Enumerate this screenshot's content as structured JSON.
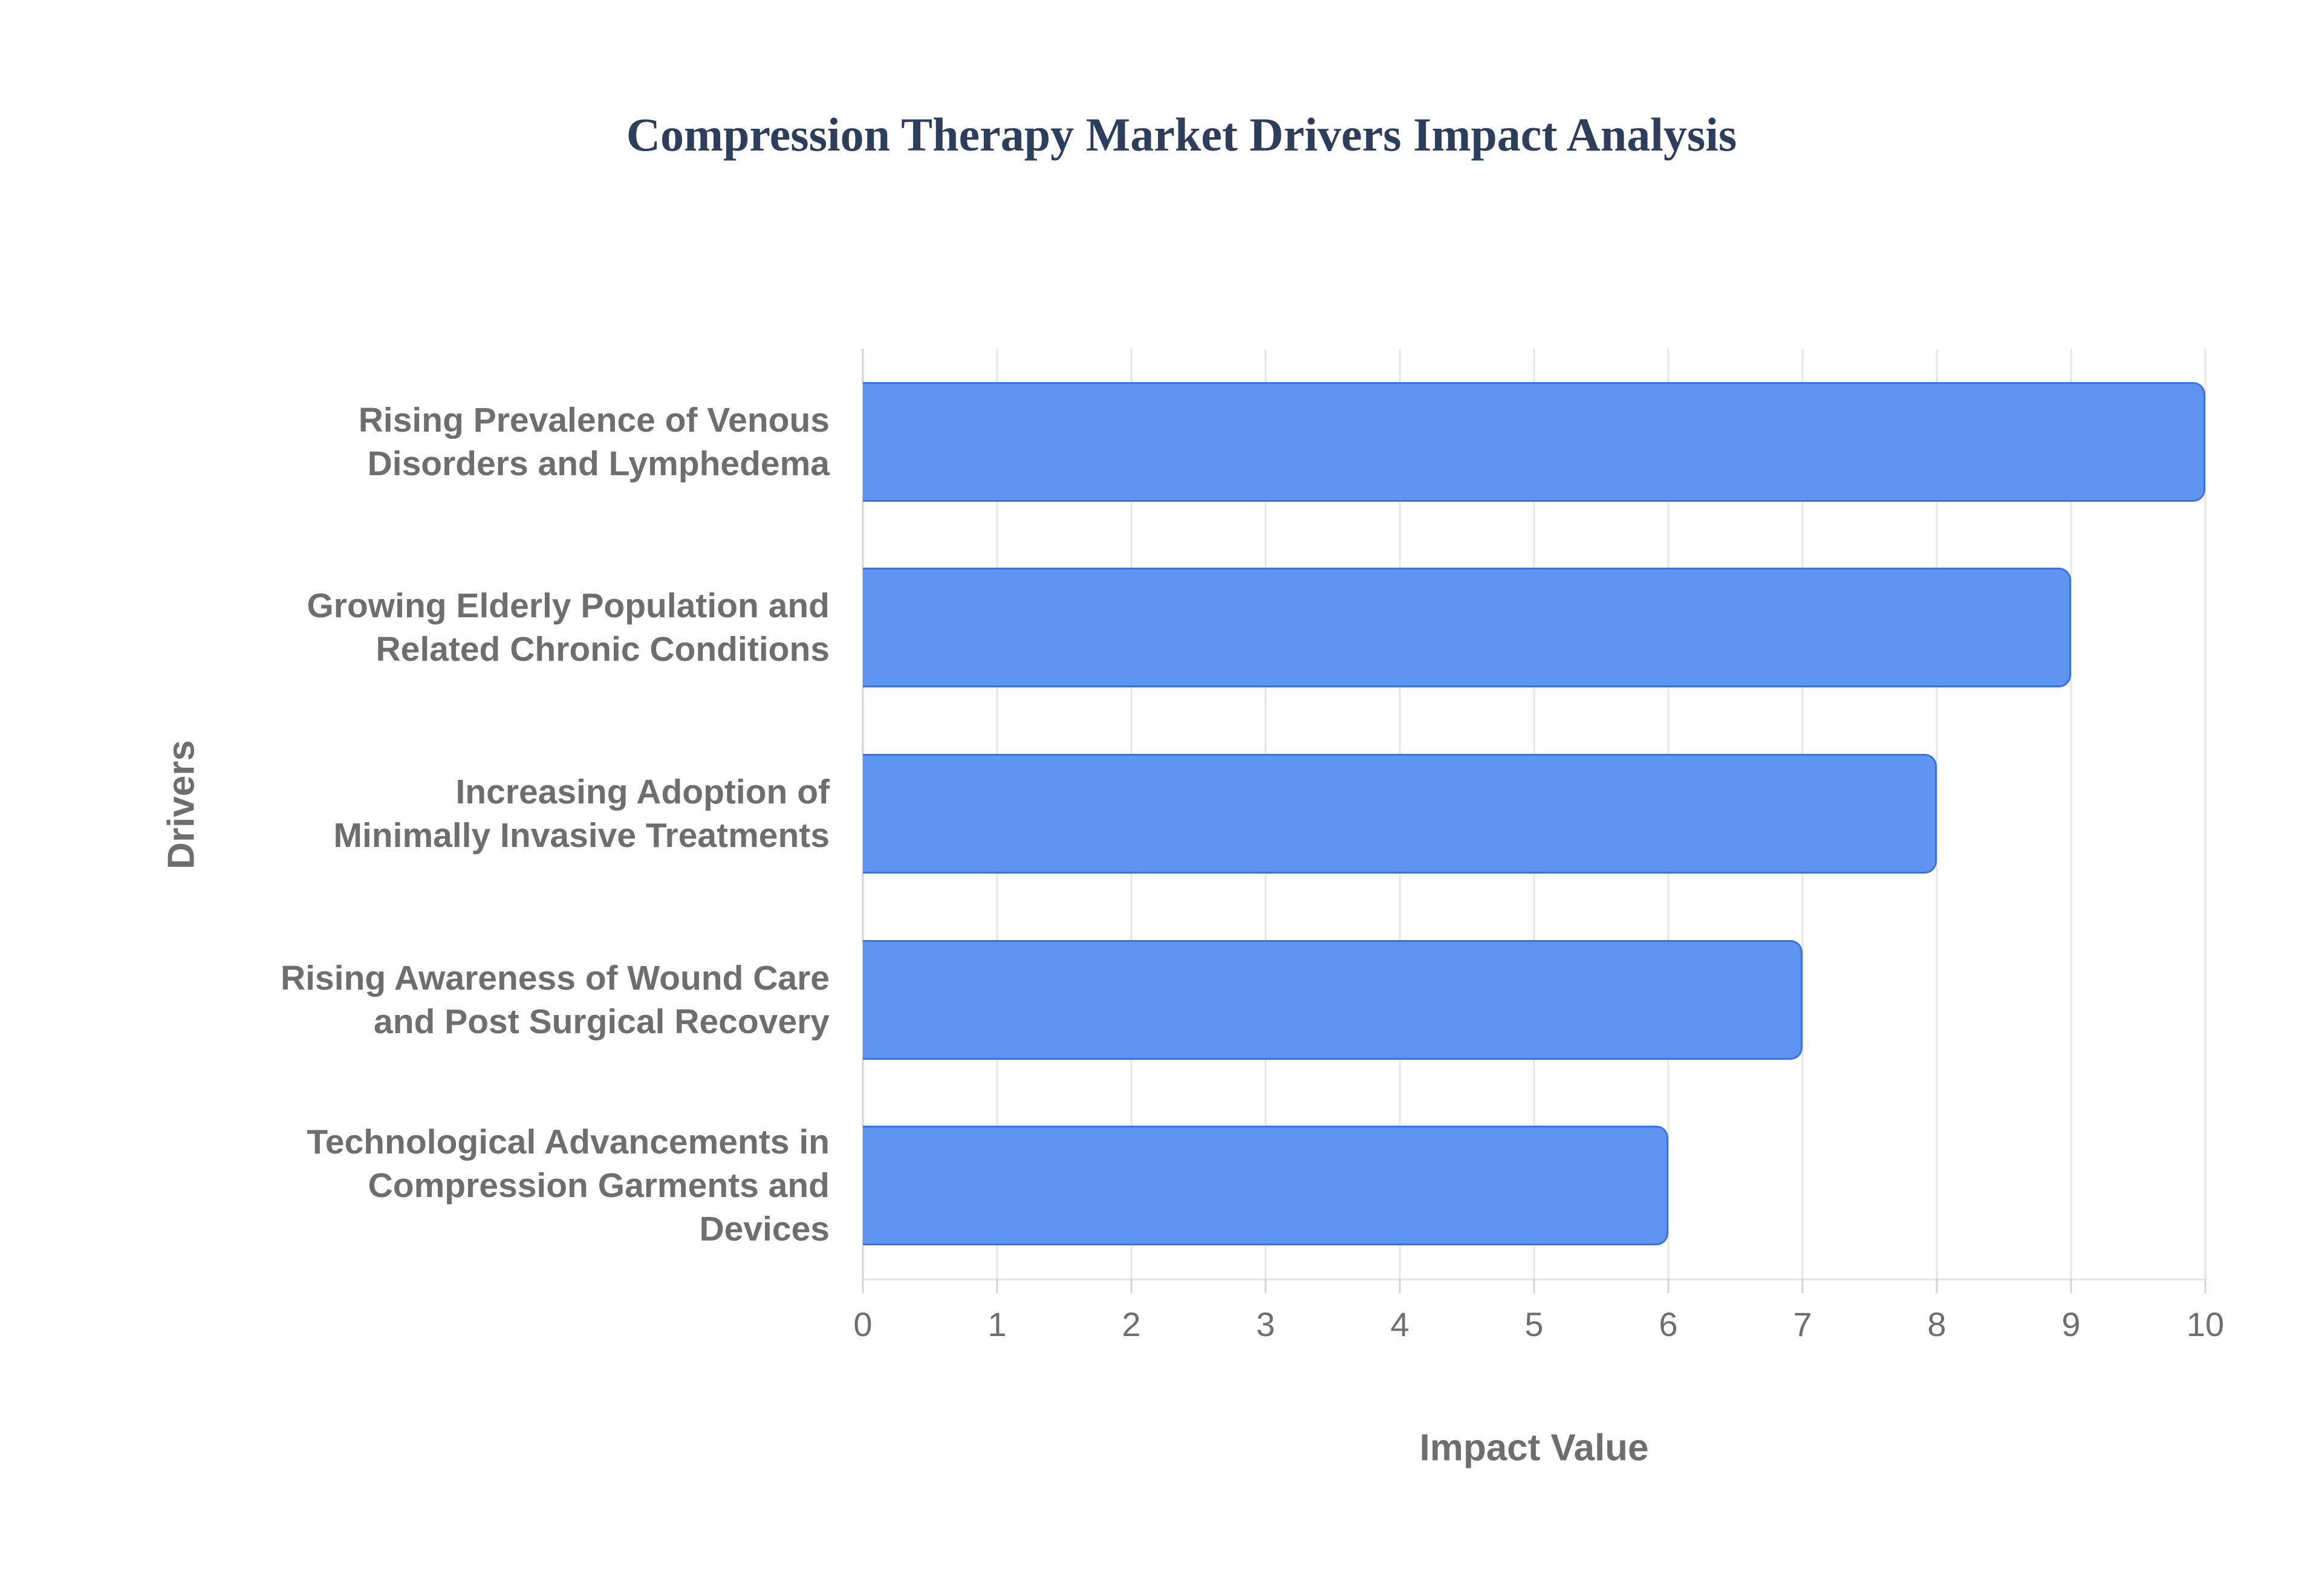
{
  "title": "Compression Therapy Market Drivers Impact Analysis",
  "chart_data": {
    "type": "bar",
    "orientation": "horizontal",
    "title": "Compression Therapy Market Drivers Impact Analysis",
    "categories": [
      "Rising Prevalence of Venous Disorders and Lymphedema",
      "Growing Elderly Population and Related Chronic Conditions",
      "Increasing Adoption of Minimally Invasive Treatments",
      "Rising Awareness of Wound Care and Post Surgical Recovery",
      "Technological Advancements in Compression Garments and Devices"
    ],
    "category_lines": [
      [
        "Rising Prevalence of Venous",
        "Disorders and Lymphedema"
      ],
      [
        "Growing Elderly Population and",
        "Related Chronic Conditions"
      ],
      [
        "Increasing Adoption of",
        "Minimally Invasive Treatments"
      ],
      [
        "Rising Awareness of Wound Care",
        "and Post Surgical Recovery"
      ],
      [
        "Technological Advancements in",
        "Compression Garments and",
        "Devices"
      ]
    ],
    "values": [
      10,
      9,
      8,
      7,
      6
    ],
    "xlabel": "Impact Value",
    "ylabel": "Drivers",
    "xlim": [
      0,
      10
    ],
    "xticks": [
      0,
      1,
      2,
      3,
      4,
      5,
      6,
      7,
      8,
      9,
      10
    ],
    "tick_labels": [
      "0",
      "1",
      "2",
      "3",
      "4",
      "5",
      "6",
      "7",
      "8",
      "9",
      "10"
    ],
    "grid": true,
    "legend": "none",
    "colors": {
      "bar_fill": "#5f95f2",
      "bar_border": "#3a72e0",
      "title": "#2d3e5c",
      "axis_text": "#6e6e6e",
      "gridline": "#e6e6e6",
      "axis_line": "#d4d4d4",
      "background": "#ffffff"
    }
  }
}
